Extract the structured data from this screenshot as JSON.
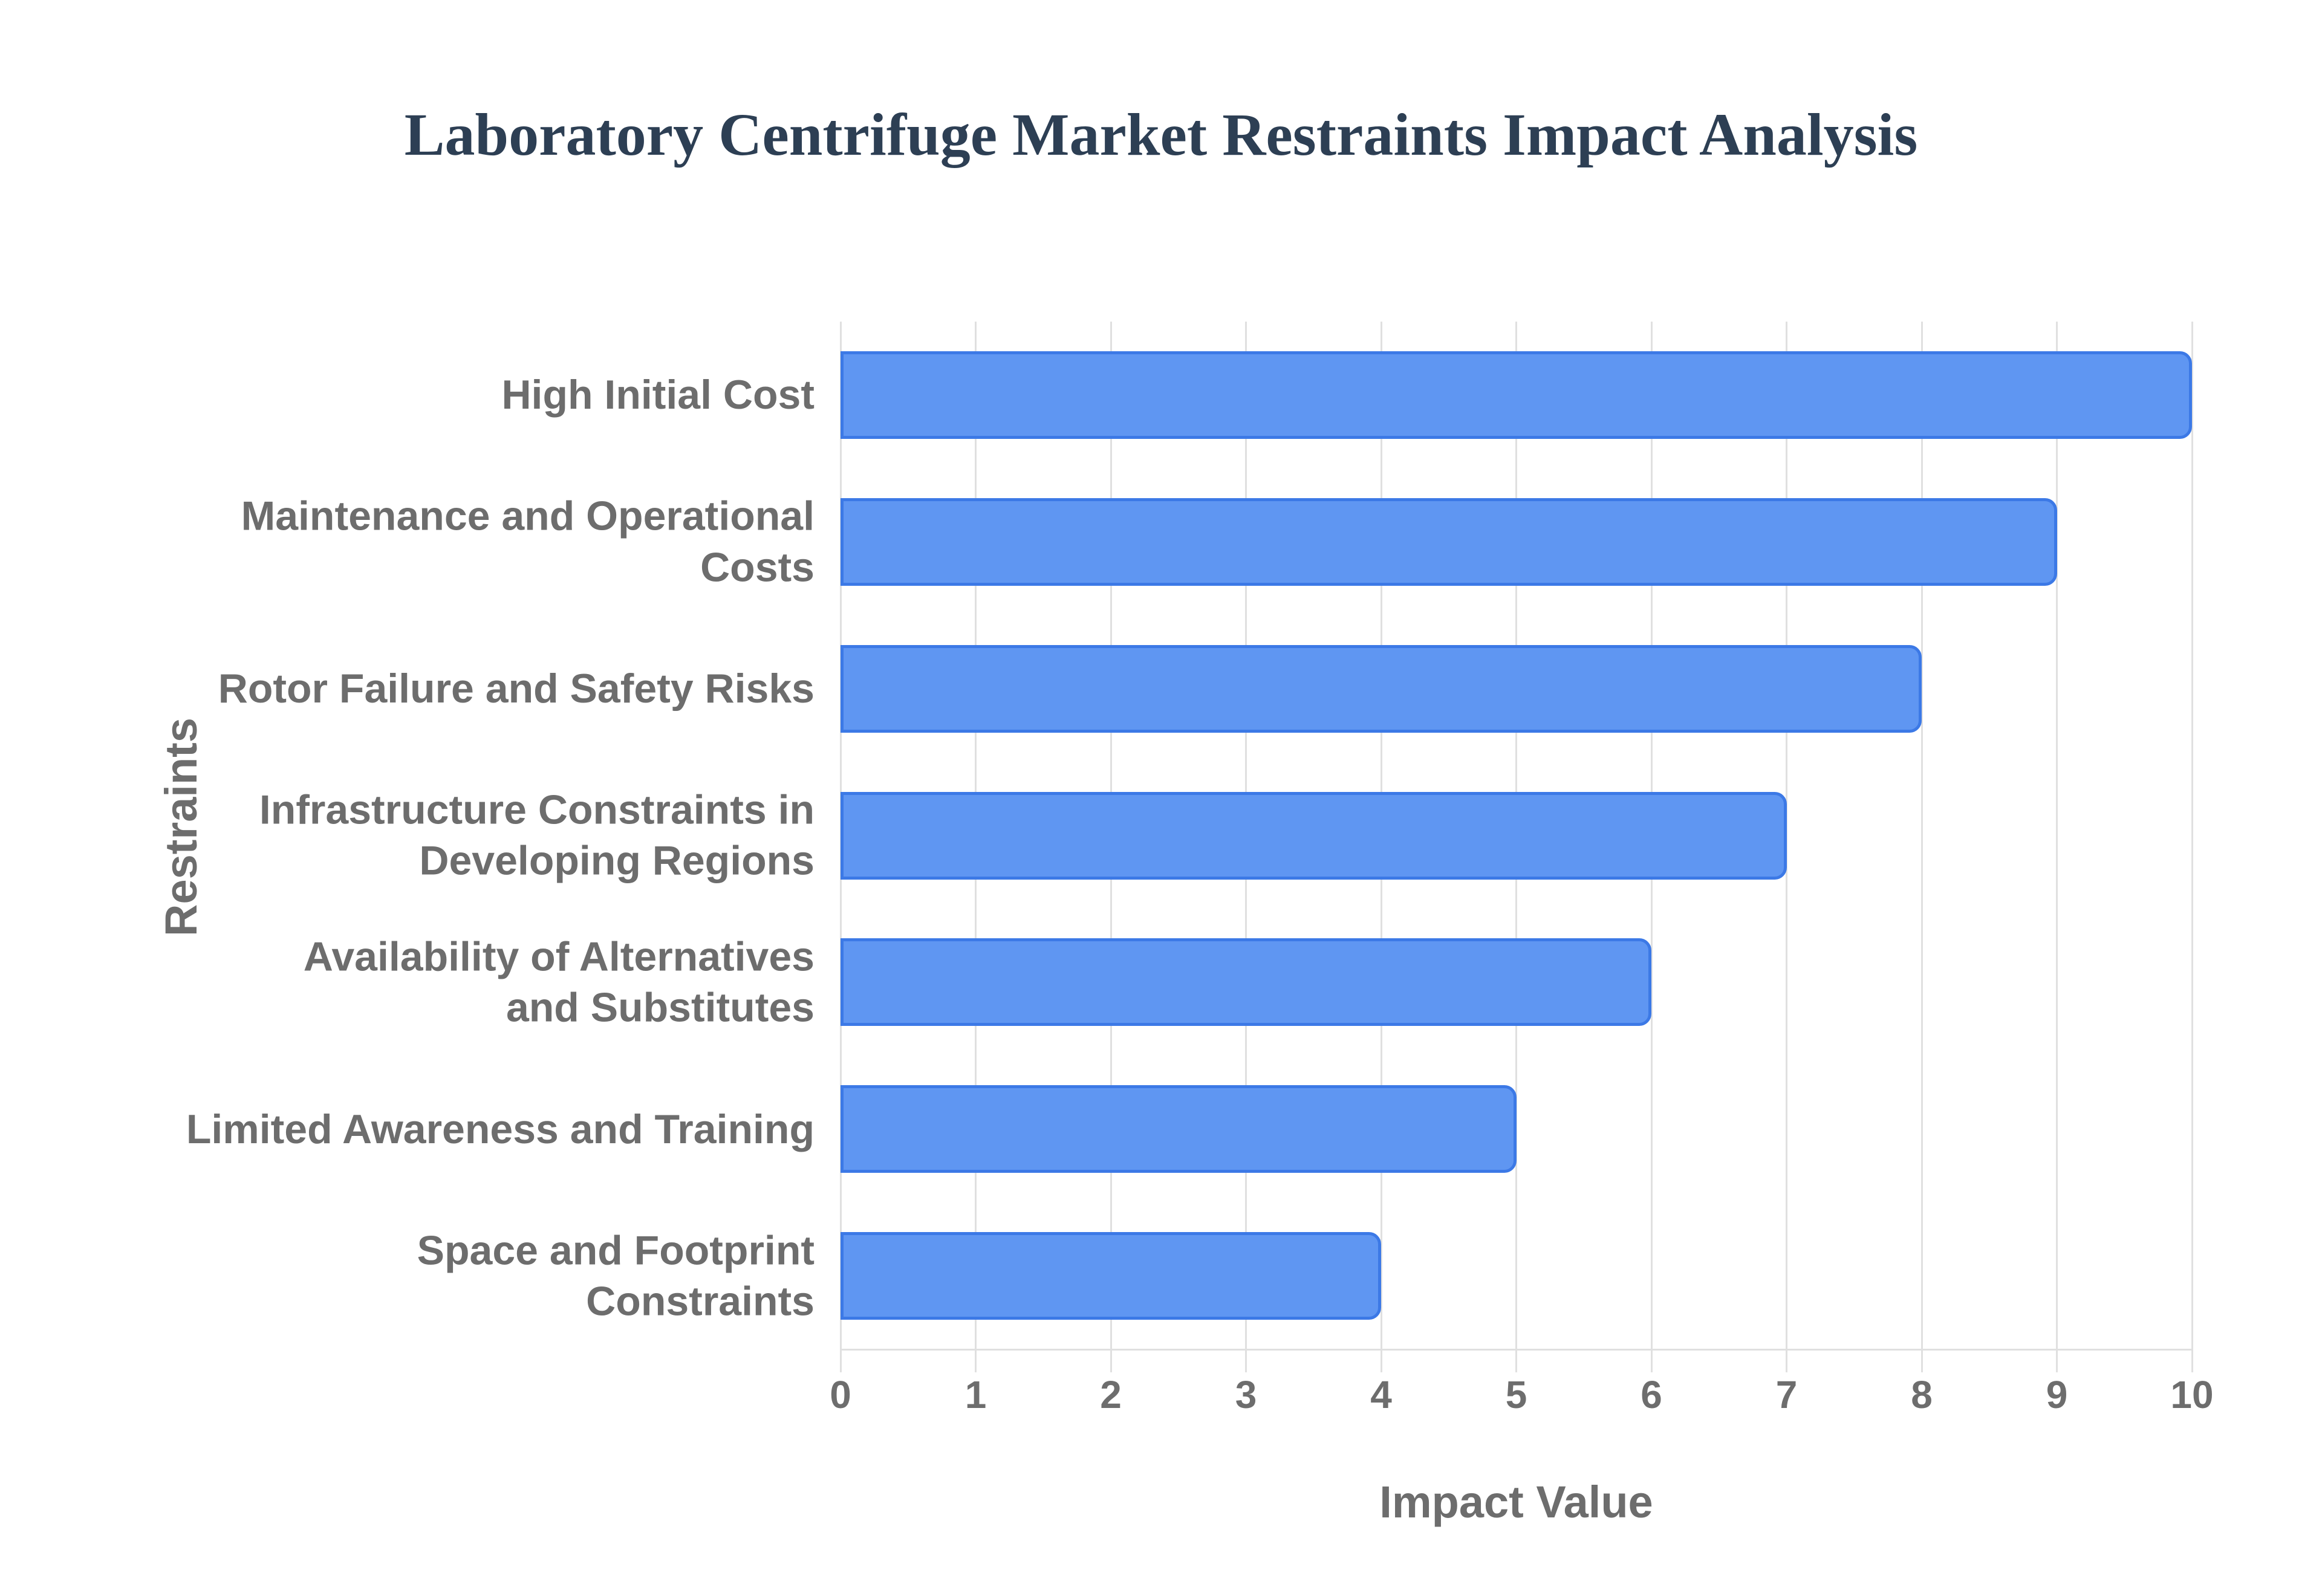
{
  "title": "Laboratory Centrifuge Market Restraints Impact Analysis",
  "x_axis_title": "Impact Value",
  "y_axis_title": "Restraints",
  "chart_data": {
    "type": "bar",
    "orientation": "horizontal",
    "title": "Laboratory Centrifuge Market Restraints Impact Analysis",
    "xlabel": "Impact Value",
    "ylabel": "Restraints",
    "categories": [
      "High Initial Cost",
      "Maintenance and Operational Costs",
      "Rotor Failure and Safety Risks",
      "Infrastructure Constraints in Developing Regions",
      "Availability of Alternatives and Substitutes",
      "Limited Awareness and Training",
      "Space and Footprint Constraints"
    ],
    "category_lines": [
      [
        "High Initial Cost"
      ],
      [
        "Maintenance and Operational",
        "Costs"
      ],
      [
        "Rotor Failure and Safety Risks"
      ],
      [
        "Infrastructure Constraints in",
        "Developing Regions"
      ],
      [
        "Availability of Alternatives",
        "and Substitutes"
      ],
      [
        "Limited Awareness and Training"
      ],
      [
        "Space and Footprint",
        "Constraints"
      ]
    ],
    "values": [
      10,
      9,
      8,
      7,
      6,
      5,
      4
    ],
    "xlim": [
      0,
      10
    ],
    "xticks": [
      "0",
      "1",
      "2",
      "3",
      "4",
      "5",
      "6",
      "7",
      "8",
      "9",
      "10"
    ],
    "grid": true,
    "legend_position": "none",
    "colors": {
      "bar_fill": "#5f96f2",
      "bar_border": "#3c79e6",
      "gridline": "#e0e0e0",
      "title_color": "#2d3f54",
      "label_color": "#6d6d6d",
      "background": "#ffffff"
    }
  }
}
